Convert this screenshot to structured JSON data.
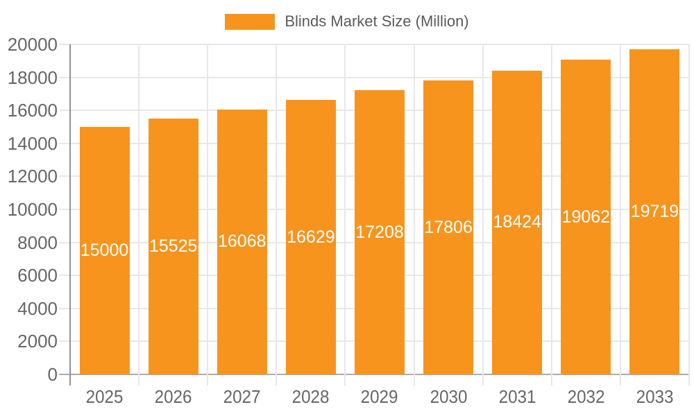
{
  "chart_data": {
    "type": "bar",
    "title": "",
    "legend_position": "top-center",
    "categories": [
      "2025",
      "2026",
      "2027",
      "2028",
      "2029",
      "2030",
      "2031",
      "2032",
      "2033"
    ],
    "series": [
      {
        "name": "Blinds Market Size (Million)",
        "values": [
          15000,
          15525,
          16068,
          16629,
          17208,
          17806,
          18424,
          19062,
          19719
        ]
      }
    ],
    "xlabel": "",
    "ylabel": "",
    "ylim": [
      0,
      20000
    ],
    "ytick_step": 2000,
    "y_tick_labels": [
      "0",
      "2000",
      "4000",
      "6000",
      "8000",
      "10000",
      "12000",
      "14000",
      "16000",
      "18000",
      "20000"
    ],
    "grid": true,
    "bar_value_labels_inside": true
  },
  "colors": {
    "bar": "#F7941E",
    "bar_value_text": "#FFFFFF",
    "grid_line": "#E7E7E7",
    "y_axis_line": "#919191",
    "x_axis_line": "#ABABAB",
    "axis_text": "#666666",
    "legend_text": "#5A5A5A",
    "background": "#FFFFFF"
  }
}
